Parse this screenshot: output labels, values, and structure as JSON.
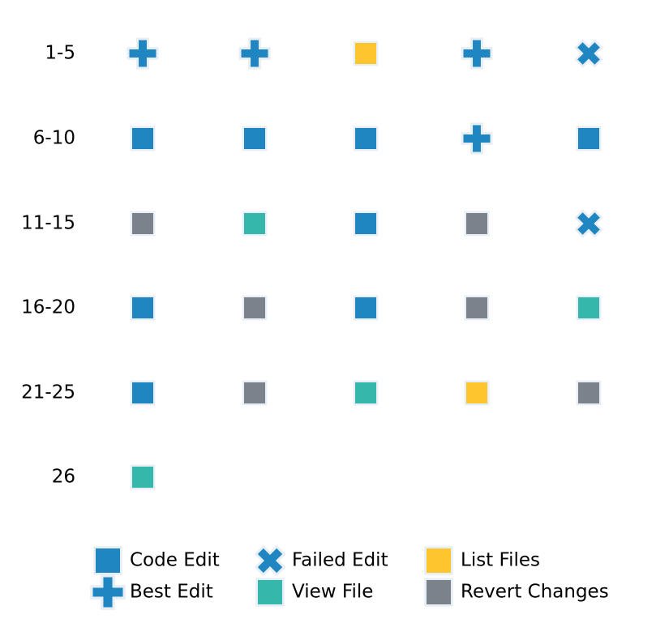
{
  "chart_data": {
    "type": "scatter",
    "title": "",
    "xlabel": "",
    "ylabel": "",
    "row_labels": [
      "1-5",
      "6-10",
      "11-15",
      "16-20",
      "21-25",
      "26"
    ],
    "columns_per_row": 5,
    "grid": [
      [
        "best_edit",
        "best_edit",
        "list_files",
        "best_edit",
        "failed_edit"
      ],
      [
        "code_edit",
        "code_edit",
        "code_edit",
        "best_edit",
        "code_edit"
      ],
      [
        "revert_changes",
        "view_file",
        "code_edit",
        "revert_changes",
        "failed_edit"
      ],
      [
        "code_edit",
        "revert_changes",
        "code_edit",
        "revert_changes",
        "view_file"
      ],
      [
        "code_edit",
        "revert_changes",
        "view_file",
        "list_files",
        "revert_changes"
      ],
      [
        "view_file",
        null,
        null,
        null,
        null
      ]
    ],
    "markers": {
      "code_edit": {
        "label": "Code Edit",
        "shape": "square",
        "color": "#1f86c2"
      },
      "failed_edit": {
        "label": "Failed Edit",
        "shape": "x",
        "color": "#1f86c2"
      },
      "list_files": {
        "label": "List Files",
        "shape": "square",
        "color": "#fdc62d"
      },
      "best_edit": {
        "label": "Best Edit",
        "shape": "plus",
        "color": "#1f86c2"
      },
      "view_file": {
        "label": "View File",
        "shape": "square",
        "color": "#35b8ab"
      },
      "revert_changes": {
        "label": "Revert Changes",
        "shape": "square",
        "color": "#7b828b"
      }
    },
    "legend_order": [
      [
        "code_edit",
        "failed_edit",
        "list_files"
      ],
      [
        "best_edit",
        "view_file",
        "revert_changes"
      ]
    ],
    "legend_position": "bottom",
    "grid_lines": false,
    "colors": {
      "halo": "#e8eef5",
      "text": "#000000",
      "background": "#ffffff"
    }
  }
}
